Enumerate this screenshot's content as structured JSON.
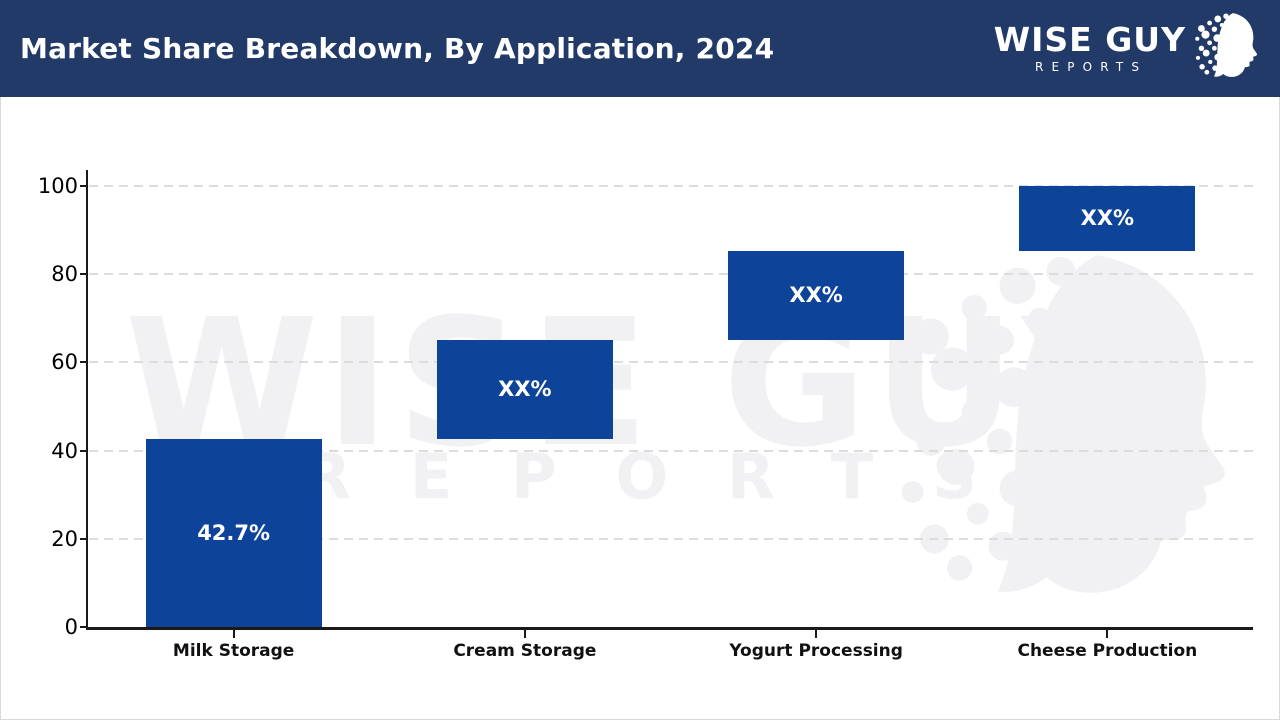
{
  "header": {
    "title": "Market Share Breakdown, By Application, 2024",
    "logo": {
      "line1": "WISE GUY",
      "line2": "REPORTS"
    }
  },
  "watermark": {
    "line1": "WISE GUY",
    "line2": "REPORTS"
  },
  "chart_data": {
    "type": "bar",
    "subtype": "stacked-waterfall-float",
    "title": "Market Share Breakdown, By Application, 2024",
    "categories": [
      "Milk Storage",
      "Cream Storage",
      "Yogurt Processing",
      "Cheese Production"
    ],
    "segments": [
      {
        "category": "Milk Storage",
        "start": 0,
        "end": 42.7,
        "value": 42.7,
        "label": "42.7%"
      },
      {
        "category": "Cream Storage",
        "start": 42.7,
        "end": 65.1,
        "value": 22.4,
        "label": "XX%"
      },
      {
        "category": "Yogurt Processing",
        "start": 65.1,
        "end": 85.3,
        "value": 20.2,
        "label": "XX%"
      },
      {
        "category": "Cheese Production",
        "start": 85.3,
        "end": 100,
        "value": 14.7,
        "label": "XX%"
      }
    ],
    "yticks": [
      0,
      20,
      40,
      60,
      80,
      100
    ],
    "ylim": [
      0,
      100
    ],
    "xlabel": "",
    "ylabel": "",
    "grid": "horizontal-dashed",
    "legend": "none",
    "bar_color": "#0d4499",
    "bar_label_color": "#ffffff"
  },
  "colors": {
    "header_bg": "#223a68",
    "header_text": "#ffffff",
    "bar": "#0d4499",
    "watermark": "#f1f1f4",
    "gridline": "#dcdcdc",
    "axis": "#1a1a1a",
    "canvas_border": "#d9d9d9"
  }
}
